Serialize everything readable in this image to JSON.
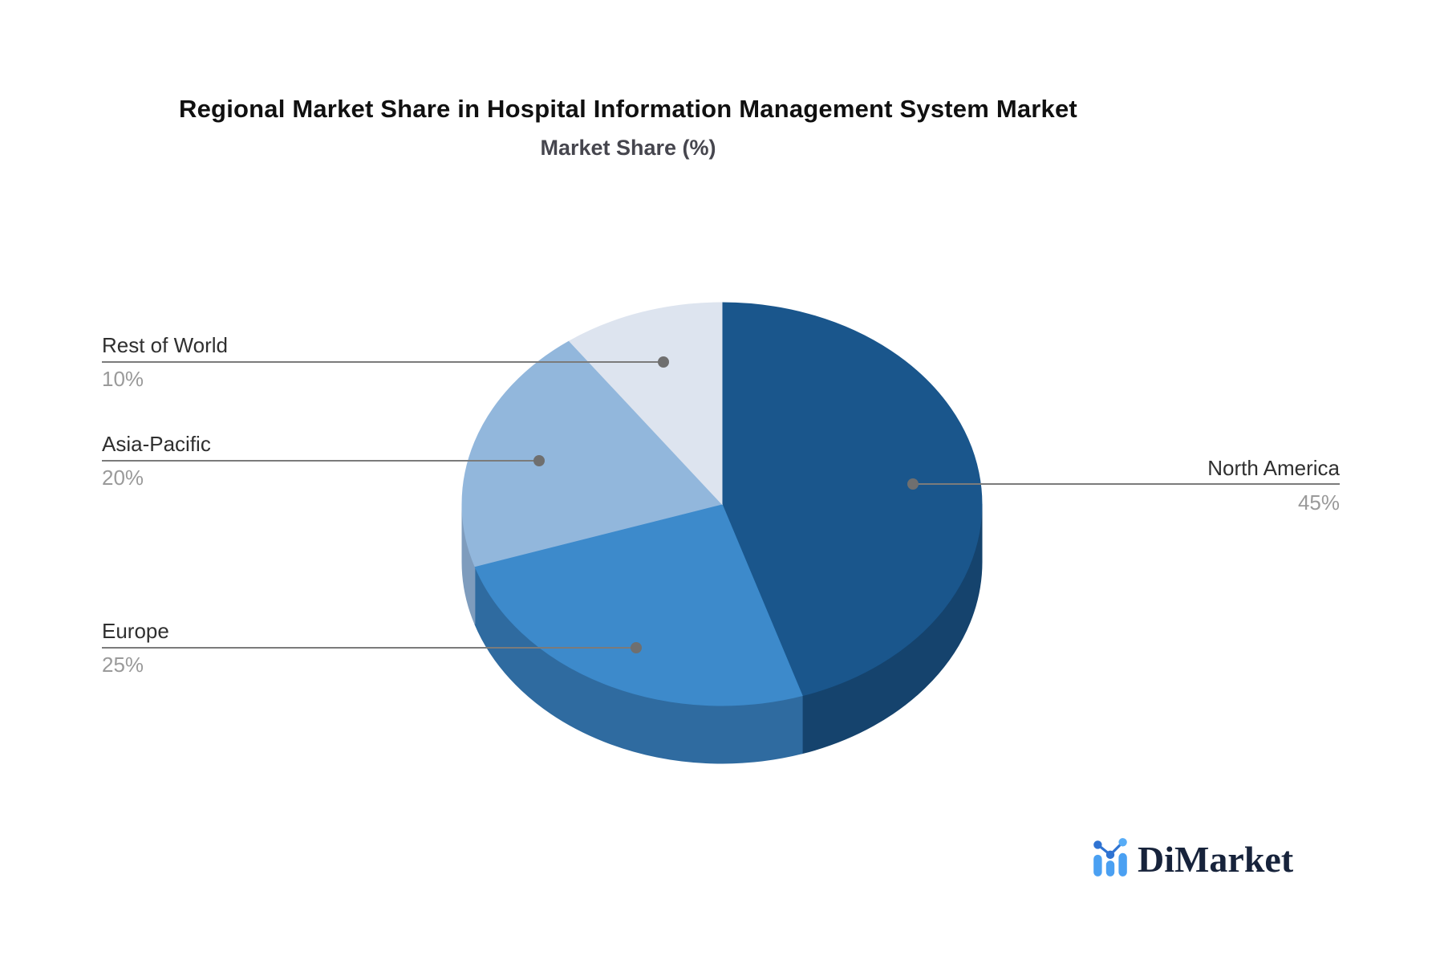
{
  "header": {
    "title": "Regional Market Share in Hospital Information Management System Market",
    "subtitle": "Market Share (%)"
  },
  "chart_data": {
    "type": "pie",
    "style": "3d",
    "title": "Regional Market Share in Hospital Information Management System Market",
    "subtitle": "Market Share (%)",
    "unit": "%",
    "start_angle_deg": 0,
    "direction": "clockwise",
    "legend": "none (callout labels with leader lines)",
    "slices": [
      {
        "label": "North America",
        "value": 45,
        "display": "45%",
        "color": "#1a568c",
        "side_color": "#15436d"
      },
      {
        "label": "Europe",
        "value": 25,
        "display": "25%",
        "color": "#3d8acb",
        "side_color": "#2f6ba0"
      },
      {
        "label": "Asia-Pacific",
        "value": 20,
        "display": "20%",
        "color": "#92b7dc",
        "side_color": "#7e9cbd"
      },
      {
        "label": "Rest of World",
        "value": 10,
        "display": "10%",
        "color": "#dde4ef",
        "side_color": "#bac6d6"
      }
    ]
  },
  "callout_colors": {
    "label_text": "#2f2f2f",
    "value_text": "#9a9a9a",
    "line": "#7b7b7b"
  },
  "logo": {
    "text": "DiMarket",
    "icon": "bar-chart-logo-icon",
    "bar_color": "#4aa0f2",
    "line_color": "#2f73d2",
    "accent_dot_color": "#57acf6",
    "text_color": "#17233b"
  }
}
